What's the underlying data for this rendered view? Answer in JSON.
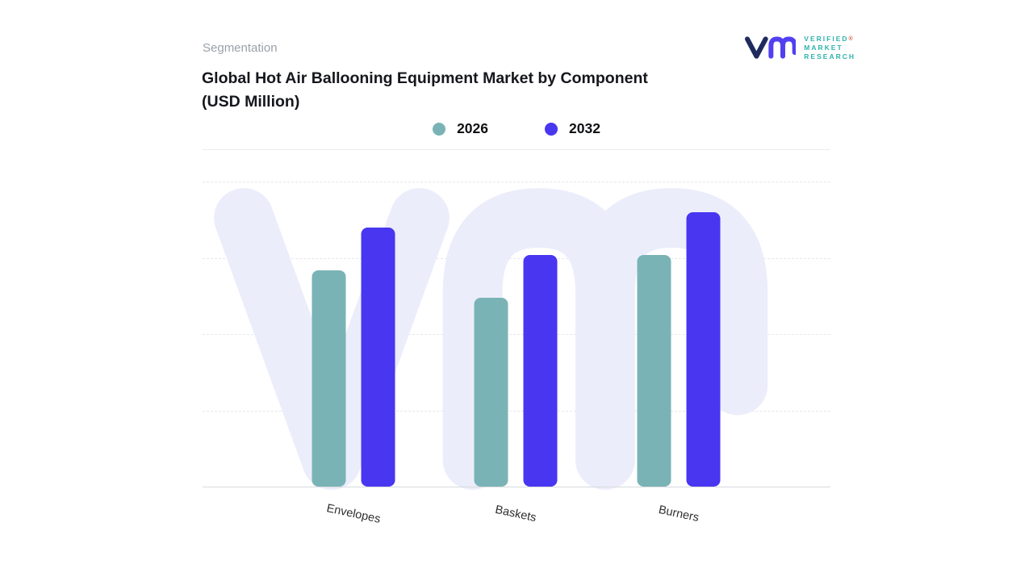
{
  "header": {
    "eyebrow": "Segmentation",
    "title_line1": "Global Hot Air Ballooning Equipment Market by Component",
    "title_line2": "(USD Million)"
  },
  "logo": {
    "line1": "VERIFIED",
    "line2": "MARKET",
    "line3": "RESEARCH",
    "reg": "®"
  },
  "chart_data": {
    "type": "bar",
    "title": "Global Hot Air Ballooning Equipment Market by Component (USD Million)",
    "unit": "USD Million",
    "categories": [
      "Envelopes",
      "Baskets",
      "Burners"
    ],
    "series": [
      {
        "name": "2026",
        "color": "#7ab3b6",
        "values": [
          71,
          62,
          76
        ]
      },
      {
        "name": "2032",
        "color": "#4836f0",
        "values": [
          85,
          76,
          90
        ]
      }
    ],
    "ylim": [
      0,
      100
    ],
    "y_axis_labels_shown": false,
    "value_labels_shown": false,
    "grid": "horizontal-dashed",
    "legend_position": "top-center",
    "group_centers_pct": [
      24.1,
      49.9,
      75.8
    ]
  },
  "colors": {
    "bar_2026_teal": "#7ab3b6",
    "bar_2032_purple": "#4836f0",
    "watermark_lavender": "#ecedfb",
    "gridline": "#e6e8ee",
    "eyebrow_gray": "#9aa1ab",
    "title_dark": "#15171c",
    "logo_teal": "#2fb2ad",
    "logo_navy": "#1f2b5e",
    "logo_purple": "#5240f0",
    "logo_reg_red": "#e0604f"
  }
}
